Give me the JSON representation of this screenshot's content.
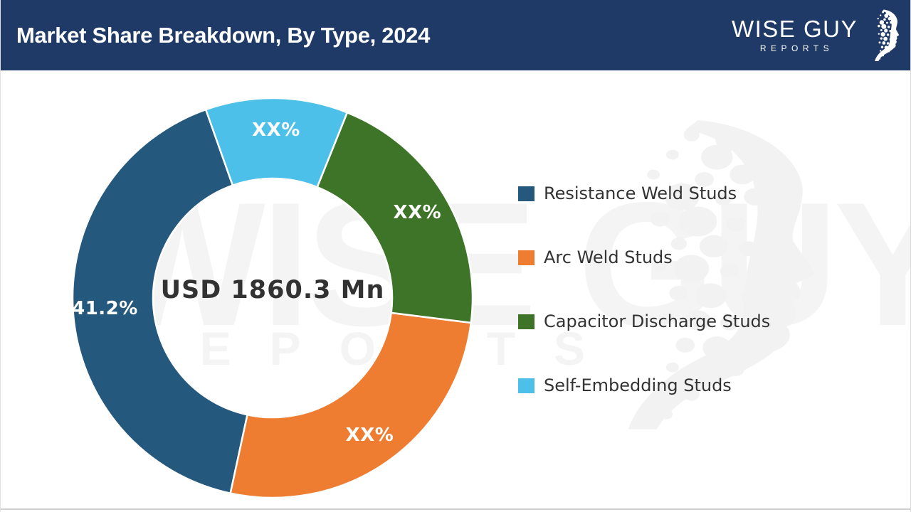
{
  "header": {
    "title": "Market Share Breakdown, By Type, 2024",
    "logo": {
      "line1": "WISE GUY",
      "line2": "REPORTS"
    },
    "bg_color": "#203a68"
  },
  "watermark": {
    "line1": "WISE GUY",
    "line2": "REPORTS"
  },
  "chart_data": {
    "type": "pie",
    "subtype": "donut",
    "title": "Market Share Breakdown, By Type, 2024",
    "center_label": "USD 1860.3 Mn",
    "start_angle_deg": 109.5,
    "direction": "counterclockwise",
    "legend_position": "right",
    "categories": [
      "Resistance Weld Studs",
      "Arc Weld Studs",
      "Capacitor Discharge Studs",
      "Self-Embedding Studs"
    ],
    "values": [
      41.2,
      26.4,
      20.9,
      11.5
    ],
    "segments": [
      {
        "label": "Resistance Weld Studs",
        "value_pct": 41.2,
        "display_label": "41.2%",
        "color": "#24587d"
      },
      {
        "label": "Arc Weld Studs",
        "value_pct": 26.4,
        "display_label": "XX%",
        "color": "#ee7d31"
      },
      {
        "label": "Capacitor Discharge Studs",
        "value_pct": 20.9,
        "display_label": "XX%",
        "color": "#3e7427"
      },
      {
        "label": "Self-Embedding Studs",
        "value_pct": 11.5,
        "display_label": "XX%",
        "color": "#4cc0e8"
      }
    ]
  }
}
